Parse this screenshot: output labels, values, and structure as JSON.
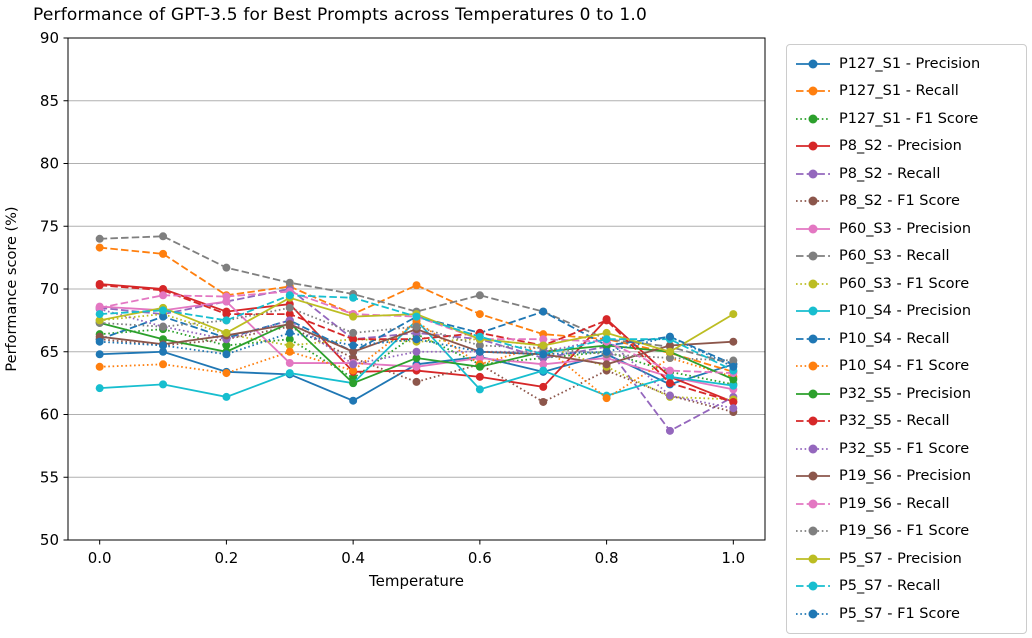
{
  "chart_data": {
    "type": "line",
    "title": "Performance of GPT-3.5 for Best Prompts across Temperatures 0 to 1.0",
    "xlabel": "Temperature",
    "ylabel": "Performance score (%)",
    "xlim": [
      -0.05,
      1.05
    ],
    "ylim": [
      50,
      90
    ],
    "xticks": [
      0.0,
      0.2,
      0.4,
      0.6,
      0.8,
      1.0
    ],
    "yticks": [
      50,
      55,
      60,
      65,
      70,
      75,
      80,
      85,
      90
    ],
    "grid": "horizontal",
    "grid_color": "#b0b0b0",
    "legend_position": "right-outside",
    "linestyle_by_metric": {
      "Precision": "solid",
      "Recall": "dashed",
      "F1 Score": "dotted"
    },
    "x": [
      0.0,
      0.1,
      0.2,
      0.3,
      0.4,
      0.5,
      0.6,
      0.7,
      0.8,
      0.9,
      1.0
    ],
    "series": [
      {
        "name": "P127_S1 - Precision",
        "color": "#1f77b4",
        "style": "solid",
        "values": [
          64.8,
          65.0,
          63.4,
          63.2,
          61.1,
          64.0,
          64.6,
          63.4,
          64.8,
          62.4,
          64.0
        ]
      },
      {
        "name": "P127_S1 - Recall",
        "color": "#ff7f0e",
        "style": "dashed",
        "values": [
          73.3,
          72.8,
          69.5,
          70.2,
          68.0,
          70.3,
          68.0,
          66.4,
          66.0,
          64.9,
          63.4
        ]
      },
      {
        "name": "P127_S1 - F1 Score",
        "color": "#2ca02c",
        "style": "dotted",
        "values": [
          66.4,
          66.8,
          65.5,
          66.0,
          62.9,
          66.4,
          64.0,
          64.5,
          65.0,
          63.4,
          62.4
        ]
      },
      {
        "name": "P8_S2 - Precision",
        "color": "#d62728",
        "style": "solid",
        "values": [
          70.4,
          70.0,
          68.2,
          68.8,
          63.4,
          63.5,
          63.0,
          62.2,
          67.6,
          63.0,
          61.0
        ]
      },
      {
        "name": "P8_S2 - Recall",
        "color": "#9467bd",
        "style": "dashed",
        "values": [
          68.5,
          68.0,
          69.0,
          70.0,
          66.0,
          66.5,
          66.0,
          64.5,
          65.4,
          58.7,
          61.4
        ]
      },
      {
        "name": "P8_S2 - F1 Score",
        "color": "#8c564b",
        "style": "dotted",
        "values": [
          66.0,
          65.5,
          66.0,
          67.0,
          64.5,
          62.6,
          64.0,
          61.0,
          63.5,
          61.5,
          60.2
        ]
      },
      {
        "name": "P60_S3 - Precision",
        "color": "#e377c2",
        "style": "solid",
        "values": [
          68.6,
          68.3,
          69.0,
          64.1,
          64.1,
          63.8,
          64.5,
          64.0,
          64.5,
          63.0,
          62.0
        ]
      },
      {
        "name": "P60_S3 - Recall",
        "color": "#7f7f7f",
        "style": "dashed",
        "values": [
          74.0,
          74.2,
          71.7,
          70.5,
          69.6,
          68.2,
          69.5,
          68.2,
          66.0,
          65.4,
          64.0
        ]
      },
      {
        "name": "P60_S3 - F1 Score",
        "color": "#bcbd22",
        "style": "dotted",
        "values": [
          67.5,
          68.0,
          66.4,
          65.5,
          66.0,
          65.8,
          66.0,
          65.5,
          63.8,
          61.4,
          61.2
        ]
      },
      {
        "name": "P10_S4 - Precision",
        "color": "#17becf",
        "style": "solid",
        "values": [
          62.1,
          62.4,
          61.4,
          63.3,
          62.5,
          67.5,
          62.0,
          63.5,
          61.5,
          63.0,
          62.3
        ]
      },
      {
        "name": "P10_S4 - Recall",
        "color": "#1f77b4",
        "style": "dashed",
        "values": [
          66.0,
          67.8,
          66.1,
          67.5,
          65.0,
          67.8,
          66.5,
          68.2,
          65.5,
          66.2,
          64.0
        ]
      },
      {
        "name": "P10_S4 - F1 Score",
        "color": "#ff7f0e",
        "style": "dotted",
        "values": [
          63.8,
          64.0,
          63.3,
          65.0,
          63.5,
          67.4,
          64.0,
          65.5,
          61.3,
          64.5,
          63.0
        ]
      },
      {
        "name": "P32_S5 - Precision",
        "color": "#2ca02c",
        "style": "solid",
        "values": [
          67.3,
          66.0,
          65.0,
          67.3,
          62.5,
          64.5,
          63.8,
          65.0,
          65.5,
          65.0,
          62.8
        ]
      },
      {
        "name": "P32_S5 - Recall",
        "color": "#d62728",
        "style": "dashed",
        "values": [
          70.3,
          69.9,
          68.0,
          68.0,
          66.0,
          66.0,
          66.5,
          65.5,
          67.5,
          62.5,
          61.0
        ]
      },
      {
        "name": "P32_S5 - F1 Score",
        "color": "#9467bd",
        "style": "dotted",
        "values": [
          68.4,
          67.0,
          66.0,
          67.5,
          64.0,
          65.0,
          65.0,
          65.0,
          66.0,
          61.5,
          60.5
        ]
      },
      {
        "name": "P19_S6 - Precision",
        "color": "#8c564b",
        "style": "solid",
        "values": [
          66.2,
          65.6,
          66.3,
          67.2,
          65.0,
          66.8,
          65.0,
          64.8,
          64.0,
          65.5,
          65.8
        ]
      },
      {
        "name": "P19_S6 - Recall",
        "color": "#e377c2",
        "style": "dashed",
        "values": [
          68.5,
          69.5,
          69.4,
          69.8,
          68.0,
          67.8,
          66.0,
          66.0,
          65.8,
          63.5,
          63.3
        ]
      },
      {
        "name": "P19_S6 - F1 Score",
        "color": "#7f7f7f",
        "style": "dotted",
        "values": [
          67.3,
          67.0,
          67.5,
          68.5,
          66.5,
          67.0,
          65.5,
          65.3,
          64.8,
          64.5,
          64.3
        ]
      },
      {
        "name": "P5_S7 - Precision",
        "color": "#bcbd22",
        "style": "solid",
        "values": [
          67.5,
          68.5,
          66.5,
          69.3,
          67.8,
          68.0,
          66.0,
          65.5,
          66.5,
          65.0,
          68.0
        ]
      },
      {
        "name": "P5_S7 - Recall",
        "color": "#17becf",
        "style": "dashed",
        "values": [
          68.0,
          68.3,
          67.5,
          69.5,
          69.3,
          67.8,
          66.2,
          64.8,
          66.0,
          66.0,
          63.5
        ]
      },
      {
        "name": "P5_S7 - F1 Score",
        "color": "#1f77b4",
        "style": "dotted",
        "values": [
          65.8,
          65.5,
          64.8,
          66.5,
          65.5,
          66.0,
          65.0,
          64.8,
          65.0,
          66.2,
          63.8
        ]
      }
    ]
  }
}
